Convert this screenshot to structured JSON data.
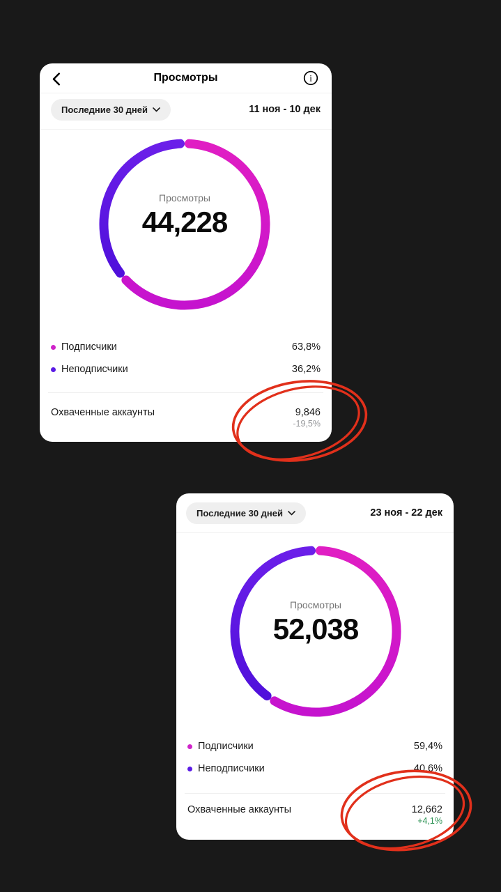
{
  "page": {
    "background": "#191919"
  },
  "colors": {
    "annotation": "#E1301B",
    "subscribers_gradient": [
      "#E01EC3",
      "#C513CE"
    ],
    "non_subscribers_gradient": [
      "#6B1FE9",
      "#5010DB"
    ],
    "subscribers_dot": "#CF24C9",
    "non_subscribers_dot": "#5B1BE5",
    "delta_negative": "#96989B",
    "delta_positive": "#2E9355"
  },
  "card1": {
    "header": {
      "title": "Просмотры"
    },
    "filter": {
      "label": "Последние 30 дней",
      "date_range": "11 ноя - 10 дек"
    },
    "donut": {
      "center_label": "Просмотры",
      "center_value": "44,228"
    },
    "legend": [
      {
        "label": "Подписчики",
        "value": "63,8%"
      },
      {
        "label": "Неподписчики",
        "value": "36,2%"
      }
    ],
    "footer": {
      "label": "Охваченные аккаунты",
      "value": "9,846",
      "delta": "-19,5%"
    }
  },
  "card2": {
    "filter": {
      "label": "Последние 30 дней",
      "date_range": "23 ноя - 22 дек"
    },
    "donut": {
      "center_label": "Просмотры",
      "center_value": "52,038"
    },
    "legend": [
      {
        "label": "Подписчики",
        "value": "59,4%"
      },
      {
        "label": "Неподписчики",
        "value": "40,6%"
      }
    ],
    "footer": {
      "label": "Охваченные аккаунты",
      "value": "12,662",
      "delta": "+4,1%"
    }
  },
  "chart_data": [
    {
      "type": "pie",
      "title": "Просмотры",
      "period": "Последние 30 дней",
      "date_range": "11 ноя - 10 дек",
      "total_views": 44228,
      "segments": [
        {
          "name": "Подписчики",
          "pct": 63.8
        },
        {
          "name": "Неподписчики",
          "pct": 36.2
        }
      ],
      "reached_accounts": 9846,
      "reached_accounts_change_pct": -19.5,
      "legend_position": "below",
      "style": "ring with rounded caps, gaps at segment joins"
    },
    {
      "type": "pie",
      "title": "Просмотры",
      "period": "Последние 30 дней",
      "date_range": "23 ноя - 22 дек",
      "total_views": 52038,
      "segments": [
        {
          "name": "Подписчики",
          "pct": 59.4
        },
        {
          "name": "Неподписчики",
          "pct": 40.6
        }
      ],
      "reached_accounts": 12662,
      "reached_accounts_change_pct": 4.1,
      "legend_position": "below",
      "style": "ring with rounded caps, gaps at segment joins"
    }
  ]
}
